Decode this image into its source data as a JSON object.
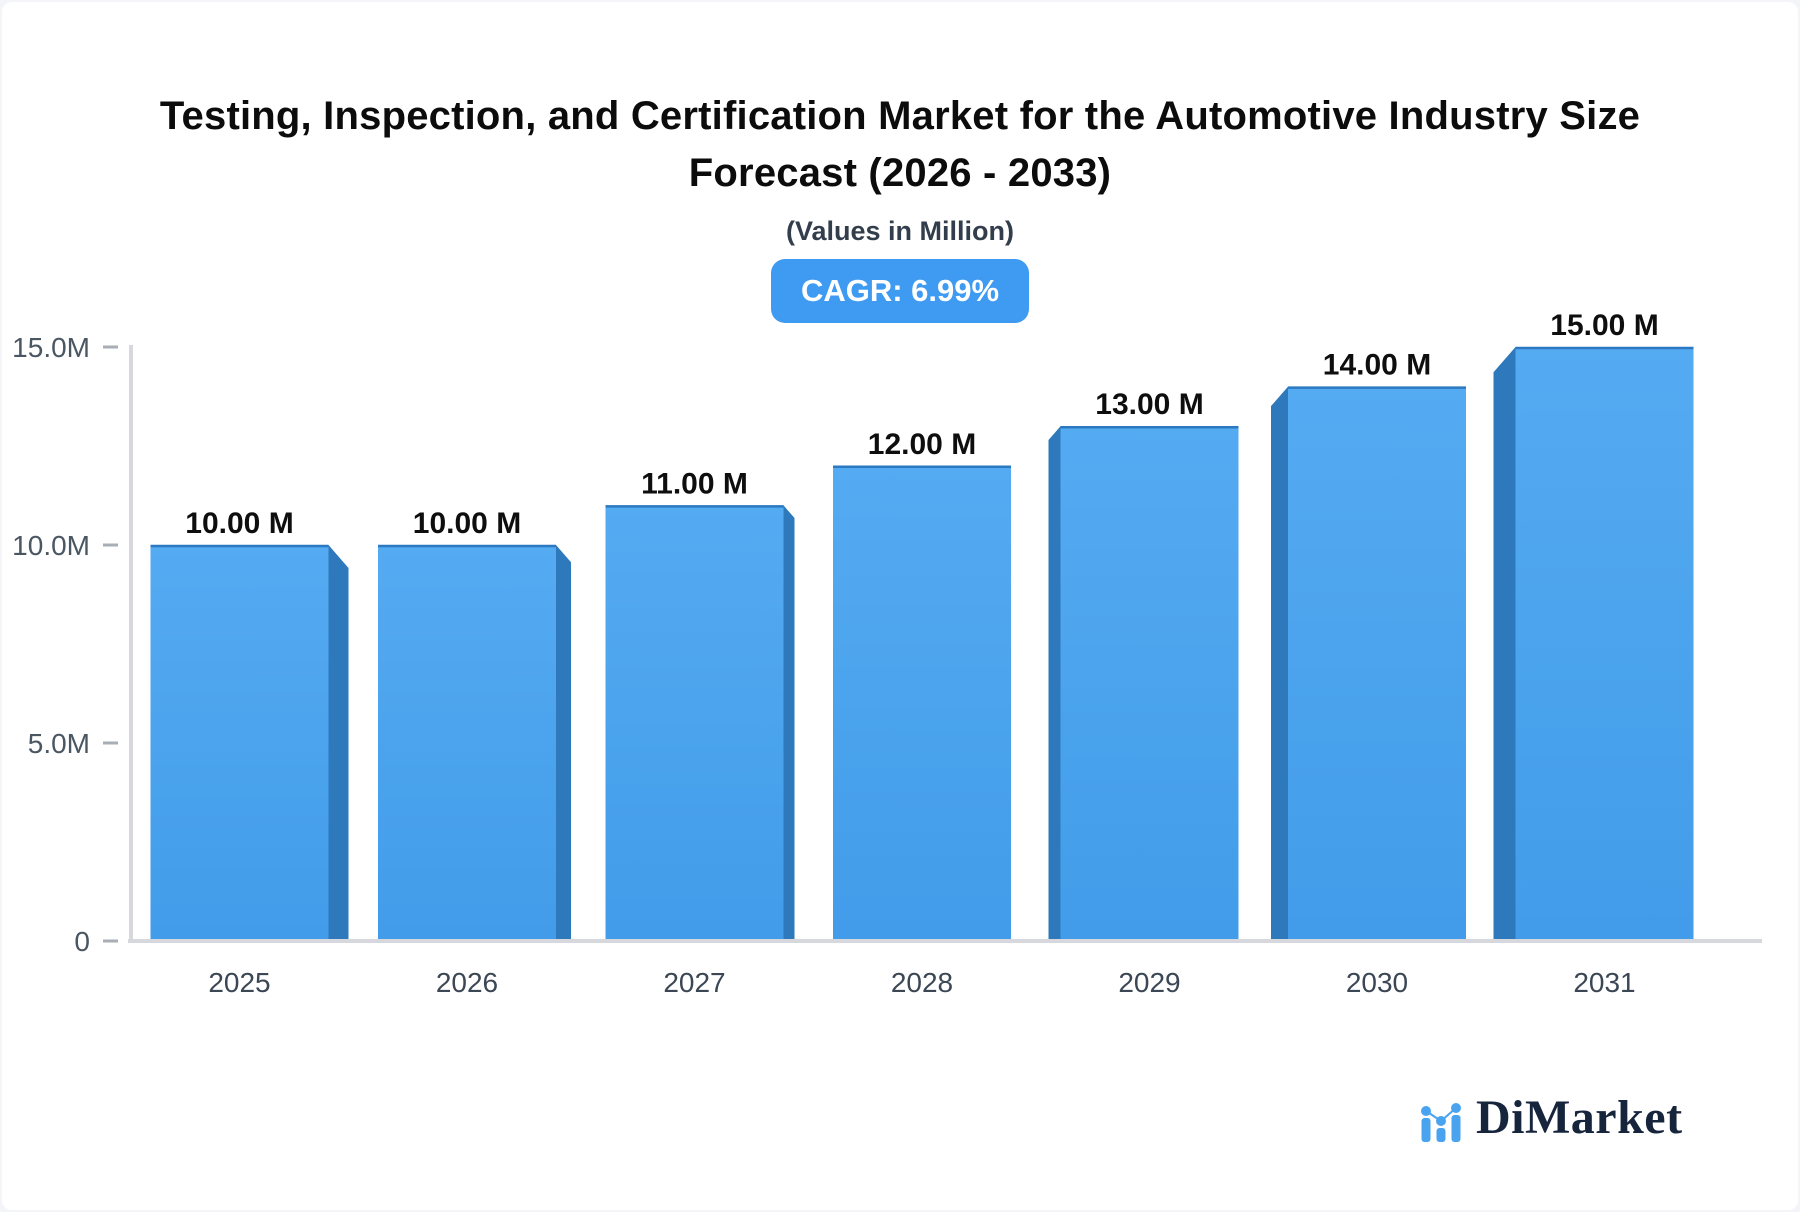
{
  "header": {
    "title_line1": "Testing, Inspection, and Certification Market for the Automotive Industry Size",
    "title_line2": "Forecast (2026 - 2033)",
    "subtitle": "(Values in Million)",
    "cagr_badge": "CAGR: 6.99%"
  },
  "chart_data": {
    "type": "bar",
    "title": "Testing, Inspection, and Certification Market for the Automotive Industry Size Forecast (2026 - 2033)",
    "subtitle": "(Values in Million)",
    "cagr": "6.99%",
    "categories": [
      "2025",
      "2026",
      "2027",
      "2028",
      "2029",
      "2030",
      "2031"
    ],
    "values": [
      10,
      10,
      11,
      12,
      13,
      14,
      15
    ],
    "value_labels": [
      "10.00 M",
      "10.00 M",
      "11.00 M",
      "12.00 M",
      "13.00 M",
      "14.00 M",
      "15.00 M"
    ],
    "xlabel": "",
    "ylabel": "",
    "ylim": [
      0,
      15
    ],
    "yticks": [
      {
        "value": 0,
        "label": "0"
      },
      {
        "value": 5,
        "label": "5.0M"
      },
      {
        "value": 10,
        "label": "10.0M"
      },
      {
        "value": 15,
        "label": "15.0M"
      }
    ],
    "grid": false,
    "legend": false,
    "colors": {
      "bar_face_top": "#55abf2",
      "bar_face_bottom": "#429ce9",
      "bar_side": "#2e79bc",
      "bar_top_edge": "#2b79c0",
      "axis_line": "#d6d8dd",
      "tick_mark": "#a9aeb6",
      "tick_label": "#4b5663",
      "category_label": "#3b4754",
      "value_label": "#0e0e0e",
      "badge_bg": "#3f9bf1"
    }
  },
  "branding": {
    "logo_text": "DiMarket",
    "logo_icon": "bar-chart-with-dots-icon",
    "logo_color": "#16243c",
    "logo_icon_color": "#4aa3ef"
  }
}
